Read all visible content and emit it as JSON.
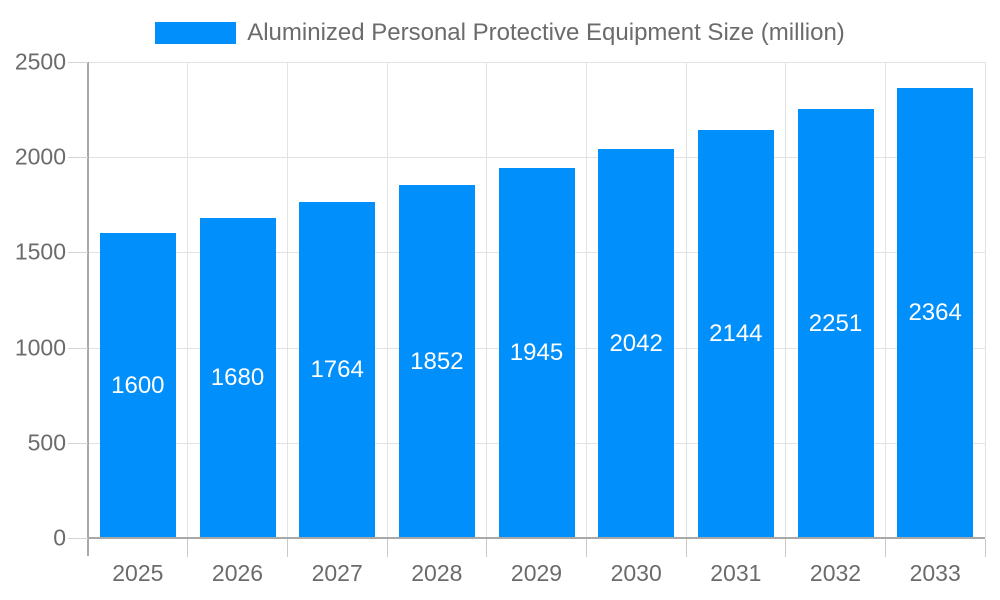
{
  "chart_data": {
    "type": "bar",
    "title": "Aluminized Personal Protective Equipment Size (million)",
    "legend": {
      "position": "top",
      "entries": [
        {
          "label": "Aluminized Personal Protective Equipment Size (million)",
          "color": "#008FFB"
        }
      ]
    },
    "categories": [
      "2025",
      "2026",
      "2027",
      "2028",
      "2029",
      "2030",
      "2031",
      "2032",
      "2033"
    ],
    "values": [
      1600,
      1680,
      1764,
      1852,
      1945,
      2042,
      2144,
      2251,
      2364
    ],
    "value_labels_shown_inside_bars": true,
    "xlabel": "",
    "ylabel": "",
    "ylim": [
      0,
      2500
    ],
    "ytick_step": 500,
    "ytick_labels": [
      "0",
      "500",
      "1000",
      "1500",
      "2000",
      "2500"
    ],
    "grid": true,
    "colors": {
      "bar": "#008FFB",
      "value_label": "#ffffff",
      "axis_label": "#6b6b6b",
      "grid_line": "#e3e3e3",
      "axis_line": "#a8a8a8",
      "background": "#ffffff"
    }
  }
}
